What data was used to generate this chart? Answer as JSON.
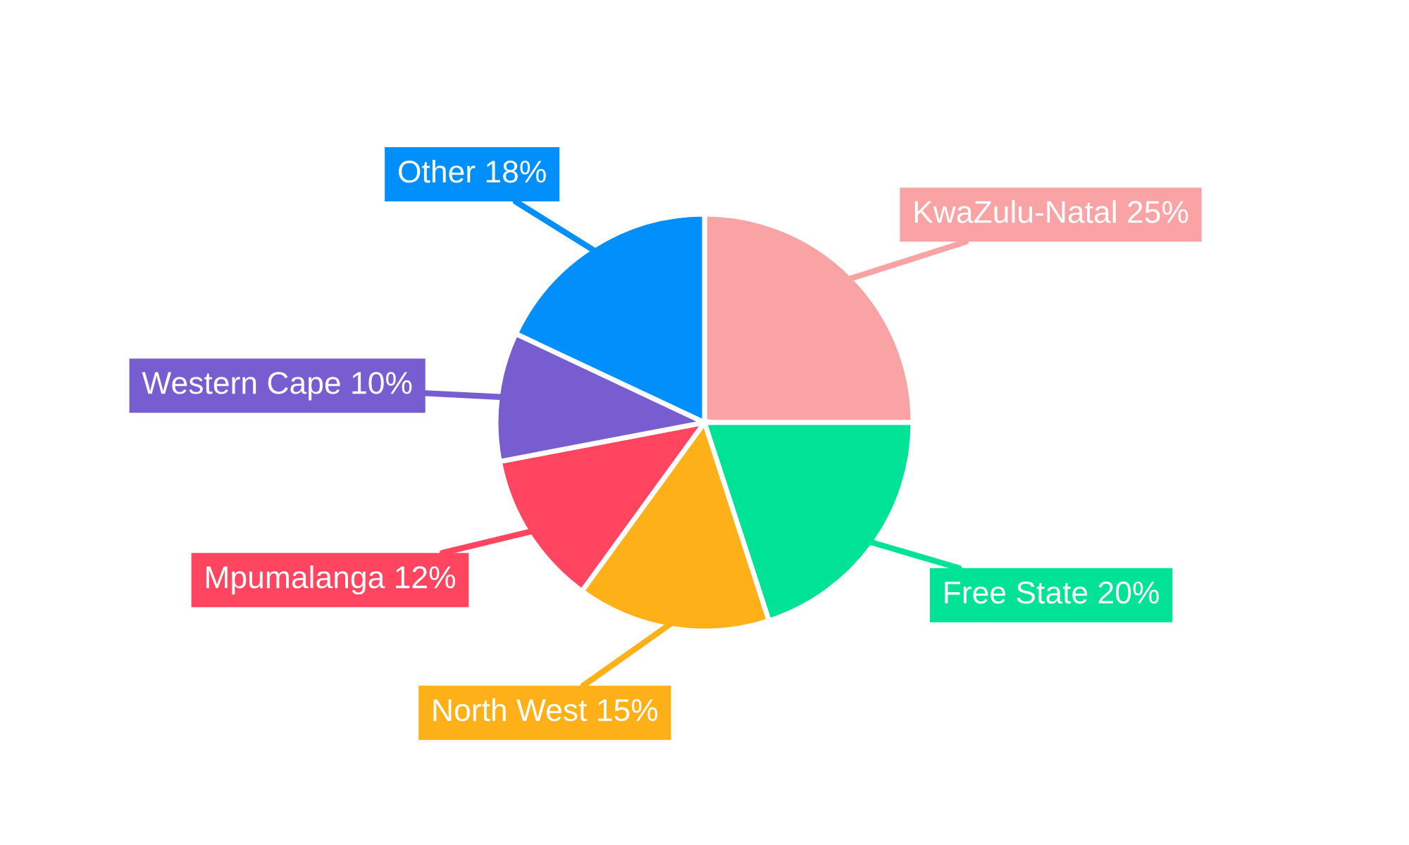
{
  "chart_data": {
    "type": "pie",
    "categories": [
      "KwaZulu-Natal",
      "Free State",
      "North West",
      "Mpumalanga",
      "Western Cape",
      "Other"
    ],
    "values": [
      25,
      20,
      15,
      12,
      10,
      18
    ],
    "value_labels": [
      "25%",
      "20%",
      "15%",
      "12%",
      "10%",
      "18%"
    ],
    "colors": [
      "#f9a3a4",
      "#00e396",
      "#feb019",
      "#ff4560",
      "#775dd0",
      "#008ffb"
    ],
    "legend": false
  }
}
